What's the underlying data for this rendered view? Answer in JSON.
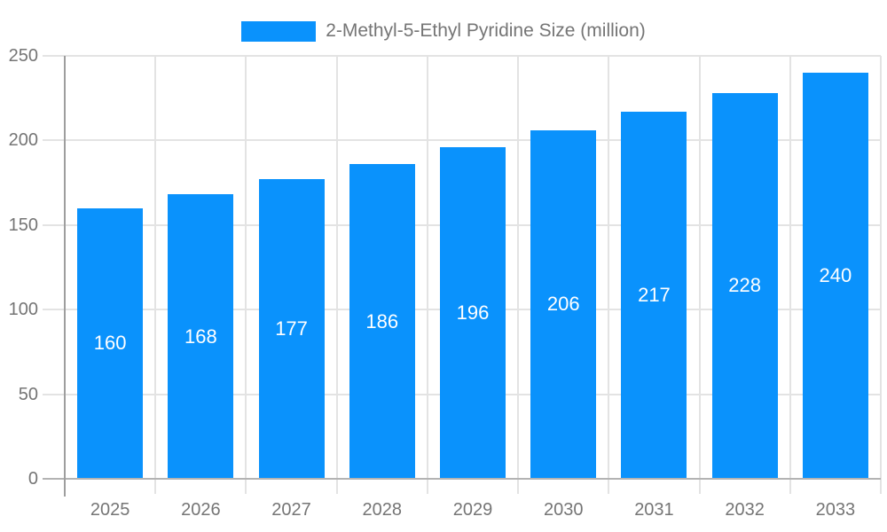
{
  "legend": {
    "label": "2-Methyl-5-Ethyl Pyridine Size (million)",
    "swatch_color": "#0a92fc"
  },
  "chart_data": {
    "type": "bar",
    "title": "2-Methyl-5-Ethyl Pyridine Size (million)",
    "categories": [
      "2025",
      "2026",
      "2027",
      "2028",
      "2029",
      "2030",
      "2031",
      "2032",
      "2033"
    ],
    "values": [
      160,
      168,
      177,
      186,
      196,
      206,
      217,
      228,
      240
    ],
    "xlabel": "",
    "ylabel": "",
    "ylim": [
      0,
      250
    ],
    "yticks": [
      0,
      50,
      100,
      150,
      200,
      250
    ],
    "grid": true,
    "legend_position": "top-center",
    "bar_color": "#0a92fc",
    "bar_label_color": "#ffffff",
    "axis_text_color": "#757575",
    "gridline_color": "#e3e3e3",
    "baseline_color": "#b3b3b3",
    "yaxis_line_color": "#9e9e9e",
    "background_color": "#ffffff"
  }
}
